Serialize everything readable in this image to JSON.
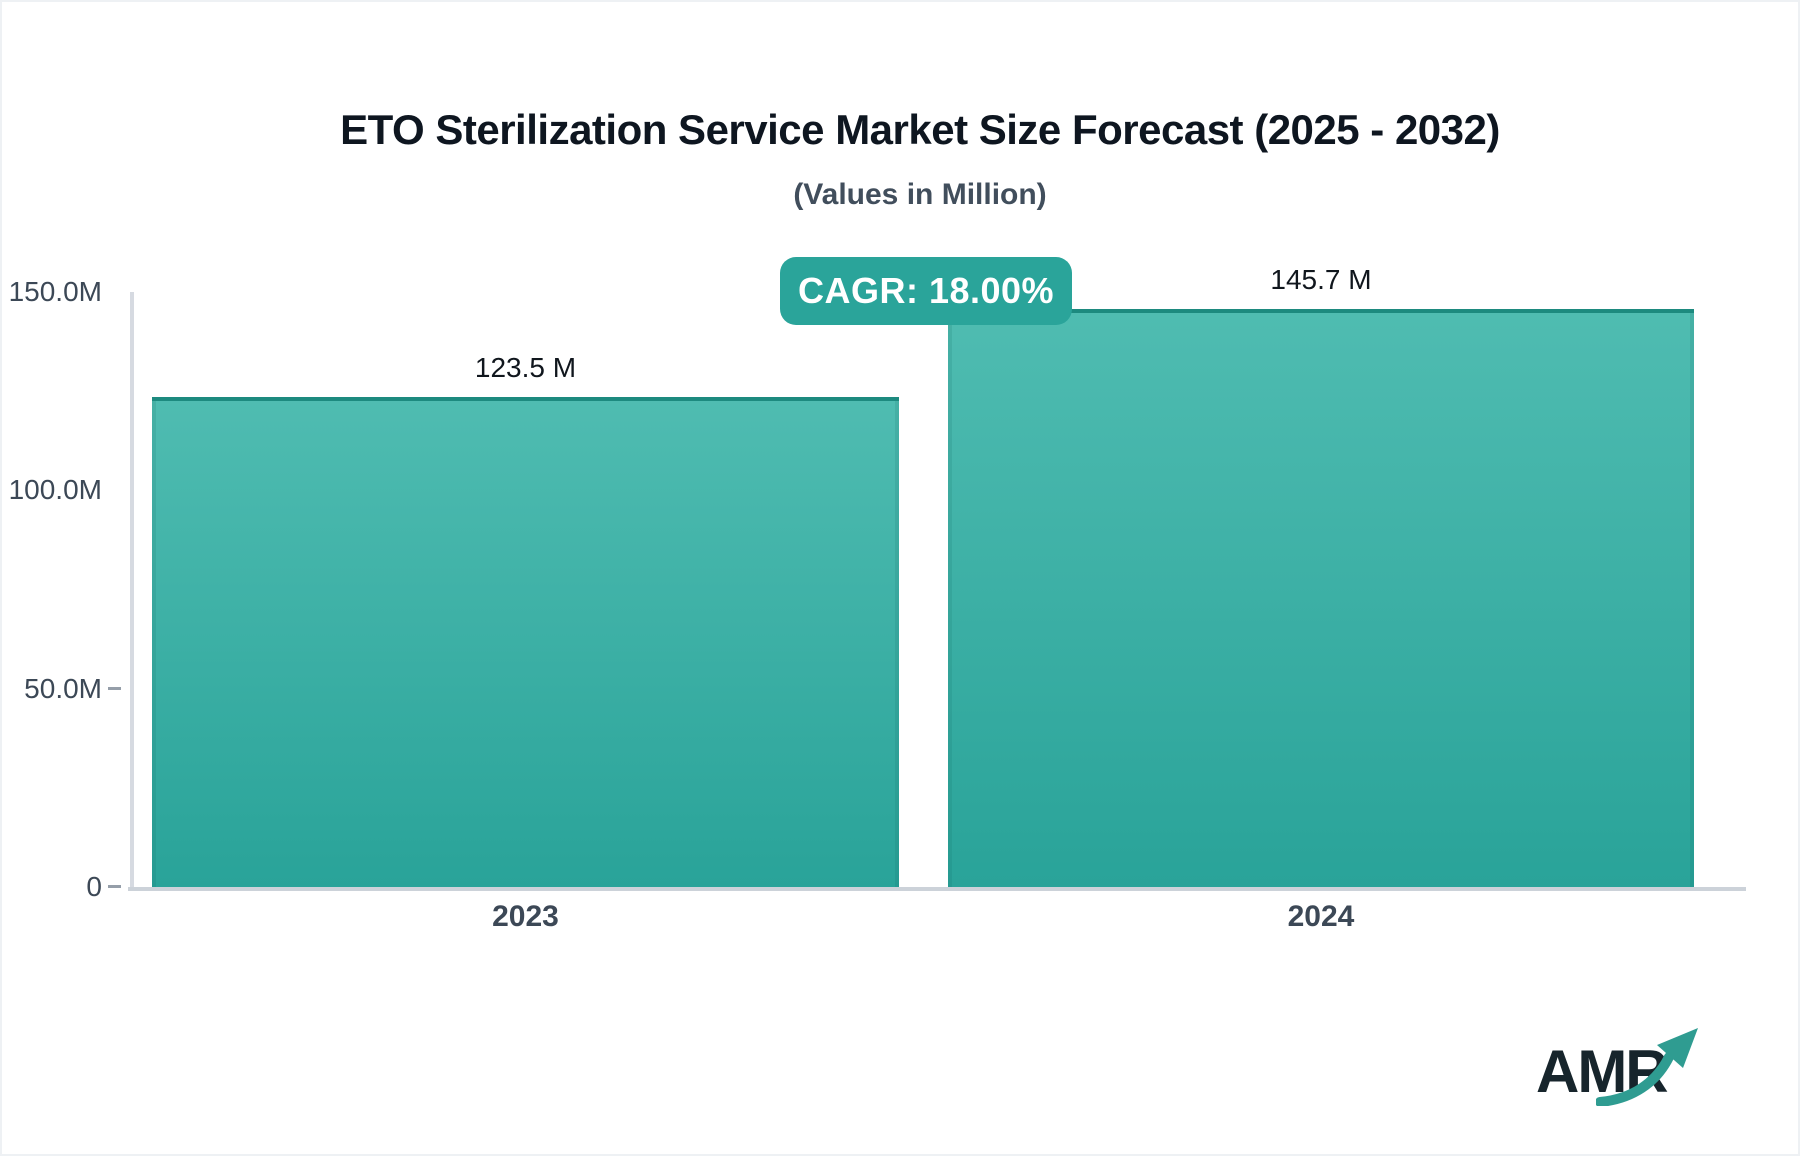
{
  "header": {
    "title": "ETO Sterilization Service Market Size Forecast (2025 - 2032)",
    "subtitle": "(Values in Million)"
  },
  "badge": {
    "label": "CAGR: 18.00%"
  },
  "chart_data": {
    "type": "bar",
    "title": "ETO Sterilization Service Market Size Forecast (2025 - 2032)",
    "subtitle": "(Values in Million)",
    "unit": "Million",
    "categories": [
      "2023",
      "2024"
    ],
    "values": [
      123.5,
      145.7
    ],
    "value_labels": [
      "123.5 M",
      "145.7 M"
    ],
    "cagr_annotation": "CAGR: 18.00%",
    "xlabel": "",
    "ylabel": "",
    "ylim": [
      0,
      150
    ],
    "grid": false,
    "legend": "none",
    "yticks": [
      {
        "value": 150,
        "label": "150.0M",
        "dash": false
      },
      {
        "value": 100,
        "label": "100.0M",
        "dash": false
      },
      {
        "value": 50,
        "label": "50.0M",
        "dash": true
      },
      {
        "value": 0,
        "label": "0",
        "dash": true
      }
    ]
  },
  "colors": {
    "badge_bg": "#2aa49a",
    "badge_text": "#ffffff",
    "bar_gradient_top": "#4fbcb1",
    "bar_gradient_bottom": "#29a399",
    "bar_top_border": "#1d8a7f",
    "axis": "#d2d7de",
    "tick_text": "#3c4856",
    "title_text": "#0e1620"
  },
  "logo": {
    "text": "AMR",
    "arrow_icon": "growth-arrow-icon",
    "text_color": "#17252c",
    "arrow_color": "#2f9c91"
  }
}
